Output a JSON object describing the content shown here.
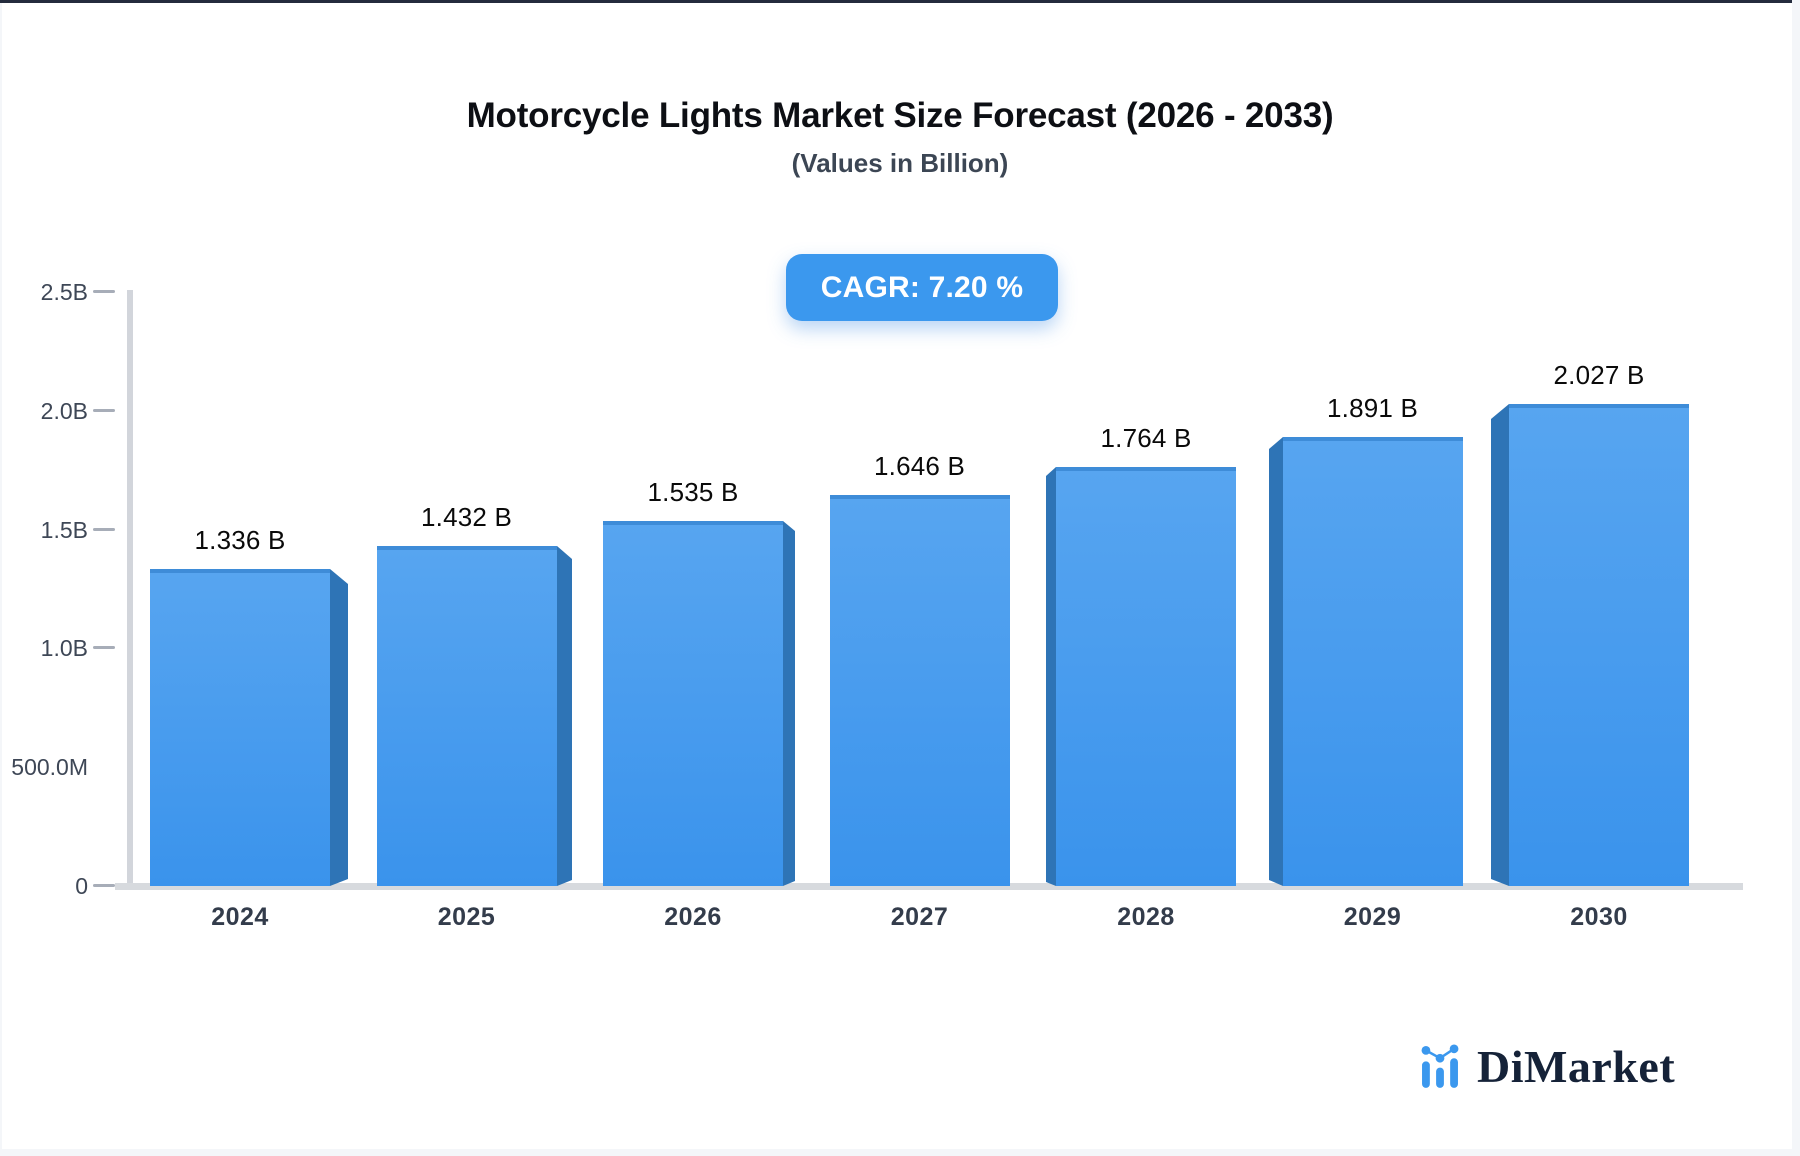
{
  "page": {
    "title": "Motorcycle Lights Market Size Forecast (2026 - 2033)",
    "subtitle": "(Values in Billion)",
    "cagr_label": "CAGR: 7.20 %"
  },
  "brand": {
    "name": "DiMarket"
  },
  "chart_data": {
    "type": "bar",
    "title": "Motorcycle Lights Market Size Forecast (2026 - 2033)",
    "subtitle": "(Values in Billion)",
    "cagr": "7.20 %",
    "categories": [
      "2024",
      "2025",
      "2026",
      "2027",
      "2028",
      "2029",
      "2030"
    ],
    "values": [
      1.336,
      1.432,
      1.535,
      1.646,
      1.764,
      1.891,
      2.027
    ],
    "value_labels": [
      "1.336 B",
      "1.432 B",
      "1.535 B",
      "1.646 B",
      "1.764 B",
      "1.891 B",
      "2.027 B"
    ],
    "unit": "Billion",
    "ylim": [
      0,
      2.5
    ],
    "yticks": [
      {
        "value": 2.5,
        "label": "2.5B",
        "dash": true
      },
      {
        "value": 2.0,
        "label": "2.0B",
        "dash": true
      },
      {
        "value": 1.5,
        "label": "1.5B",
        "dash": true
      },
      {
        "value": 1.0,
        "label": "1.0B",
        "dash": true
      },
      {
        "value": 0.5,
        "label": "500.0M",
        "dash": false
      },
      {
        "value": 0,
        "label": "0",
        "dash": true
      }
    ],
    "grid": false,
    "legend": "none",
    "colors": {
      "bar_face_top": "#57a5f0",
      "bar_face_bottom": "#3a93ec",
      "bar_top_edge": "#3e8cd8",
      "bar_side": "#2e74b6",
      "accent": "#3b98ee",
      "axis_gray": "#d2d5db",
      "tick_label": "#3e4756",
      "value_label": "#0a0a0a",
      "brand_navy": "#152238"
    }
  }
}
